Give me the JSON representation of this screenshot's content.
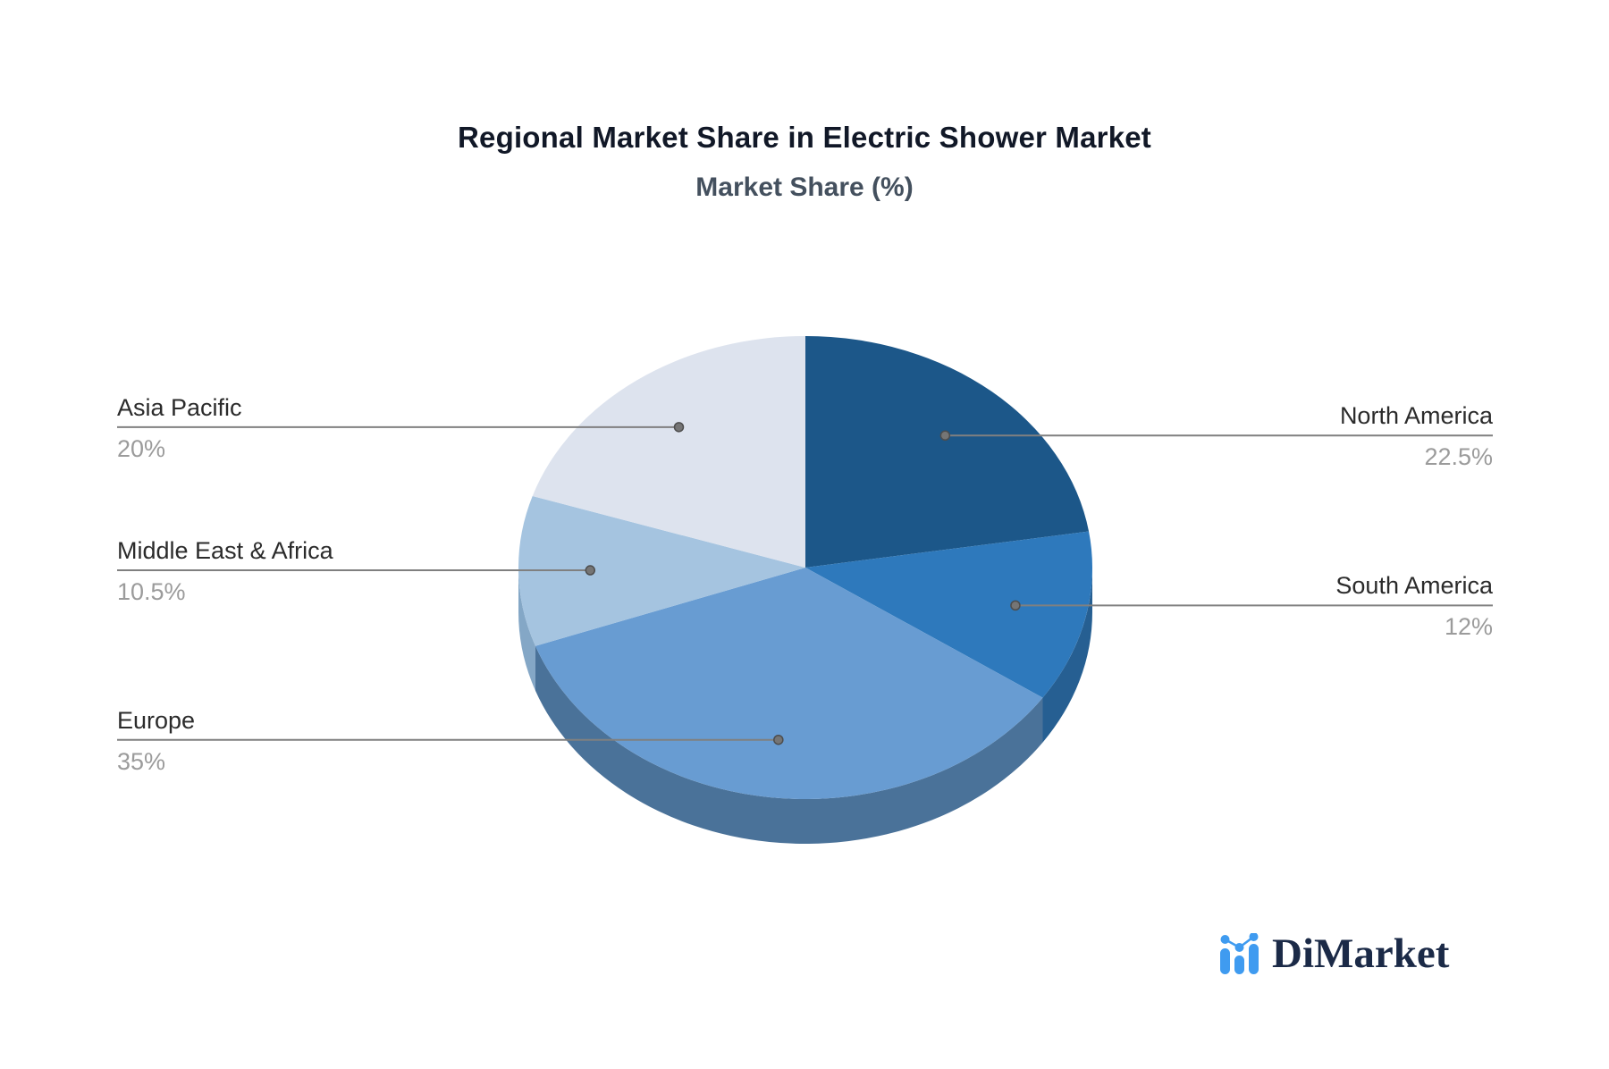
{
  "header": {
    "title": "Regional Market Share in Electric Shower Market",
    "subtitle": "Market Share (%)"
  },
  "chart_data": {
    "type": "pie",
    "title": "Regional Market Share in Electric Shower Market",
    "subtitle": "Market Share (%)",
    "unit": "%",
    "effect": "3d",
    "start_angle": "top",
    "direction": "clockwise",
    "legend": "none",
    "slices": [
      {
        "name": "North America",
        "value": 22.5,
        "display": "22.5%",
        "color": "#1C5789",
        "side_color": "#16466C",
        "label_side": "right"
      },
      {
        "name": "South America",
        "value": 12,
        "display": "12%",
        "color": "#2E79BC",
        "side_color": "#265F92",
        "label_side": "right"
      },
      {
        "name": "Europe",
        "value": 35,
        "display": "35%",
        "color": "#689CD2",
        "side_color": "#4A7299",
        "label_side": "left"
      },
      {
        "name": "Middle East & Africa",
        "value": 10.5,
        "display": "10.5%",
        "color": "#A5C4E0",
        "side_color": "#84A7C6",
        "label_side": "left"
      },
      {
        "name": "Asia Pacific",
        "value": 20,
        "display": "20%",
        "color": "#DDE3EE",
        "side_color": "#B8C2D1",
        "label_side": "left"
      }
    ],
    "label_style": {
      "name_color": "#2B2B2B",
      "value_color": "#9B9B9B",
      "line_color": "#808080"
    }
  },
  "branding": {
    "logo_text": "DiMarket",
    "logo_color": "#1B2A47",
    "icon_color": "#3F9BF0",
    "icon": "mini-bar-line-chart-icon"
  }
}
